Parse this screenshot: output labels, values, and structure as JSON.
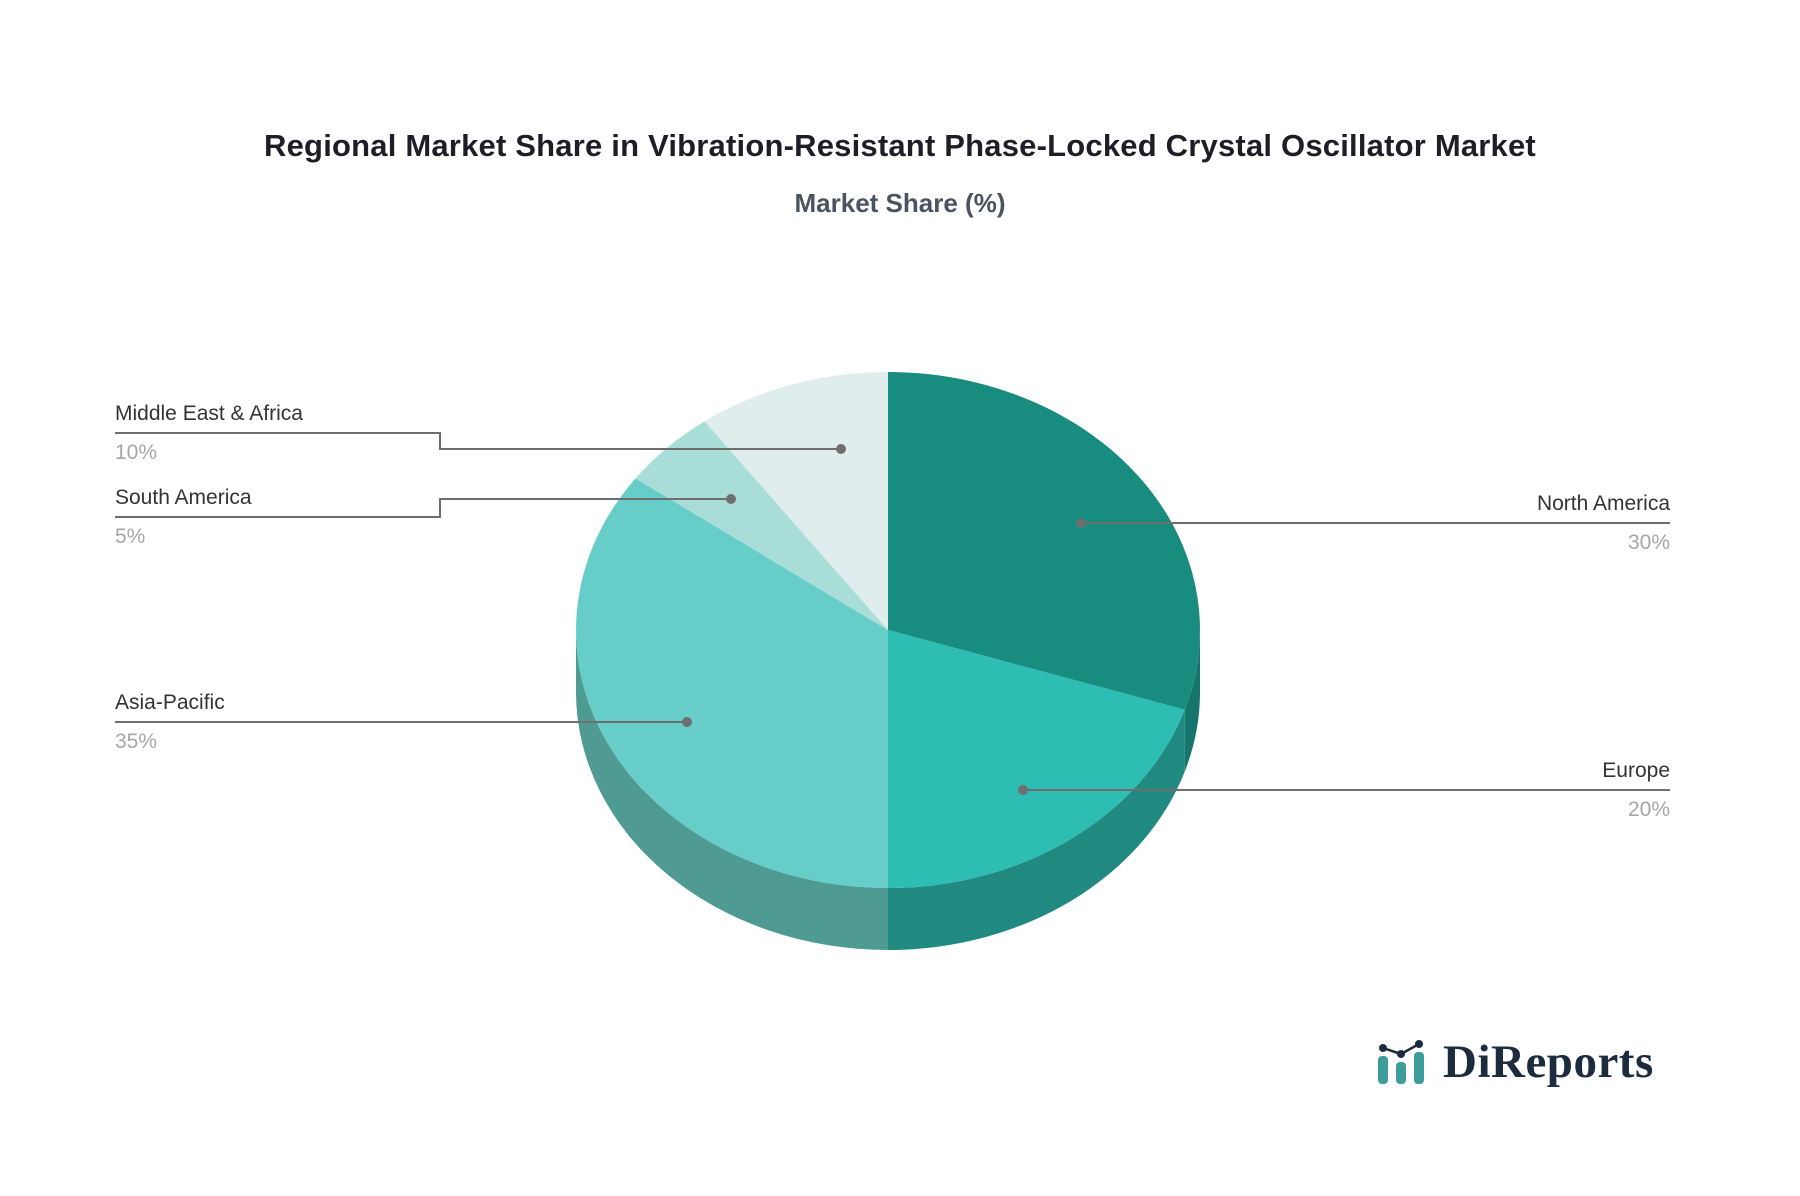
{
  "title": "Regional Market Share in Vibration-Resistant Phase-Locked Crystal Oscillator Market",
  "subtitle": "Market Share (%)",
  "logo": {
    "text": "DiReports",
    "icon": "mini-bar-chart-icon",
    "text_color": "#1C2B3E",
    "icon_bar_color": "#3D9D9D",
    "icon_dot_color": "#1C2B3E"
  },
  "colors": {
    "background": "#FFFFFF",
    "title": "#1E1E28",
    "subtitle": "#4A5460",
    "label": "#333333",
    "value": "#A6A6A6",
    "leader_line": "#6E6E6E"
  },
  "chart_data": {
    "type": "pie",
    "style": "3d",
    "title": "Regional Market Share in Vibration-Resistant Phase-Locked Crystal Oscillator Market",
    "subtitle": "Market Share (%)",
    "unit": "%",
    "direction": "clockwise",
    "start_angle_deg": 0,
    "legend_position": "callout-labels",
    "slices": [
      {
        "label": "North America",
        "value": 30,
        "value_label": "30%",
        "color": "#198C80",
        "rim_color": "#15756C"
      },
      {
        "label": "Europe",
        "value": 20,
        "value_label": "20%",
        "color": "#2EBDB2",
        "rim_color": "#218A80"
      },
      {
        "label": "Asia-Pacific",
        "value": 35,
        "value_label": "35%",
        "color": "#66CDC8",
        "rim_color": "#4F9B94"
      },
      {
        "label": "South America",
        "value": 5,
        "value_label": "5%",
        "color": "#A9DED8",
        "rim_color": "#7FB5AF"
      },
      {
        "label": "Middle East & Africa",
        "value": 10,
        "value_label": "10%",
        "color": "#DFEEEC",
        "rim_color": "#AFC7C4"
      }
    ]
  }
}
